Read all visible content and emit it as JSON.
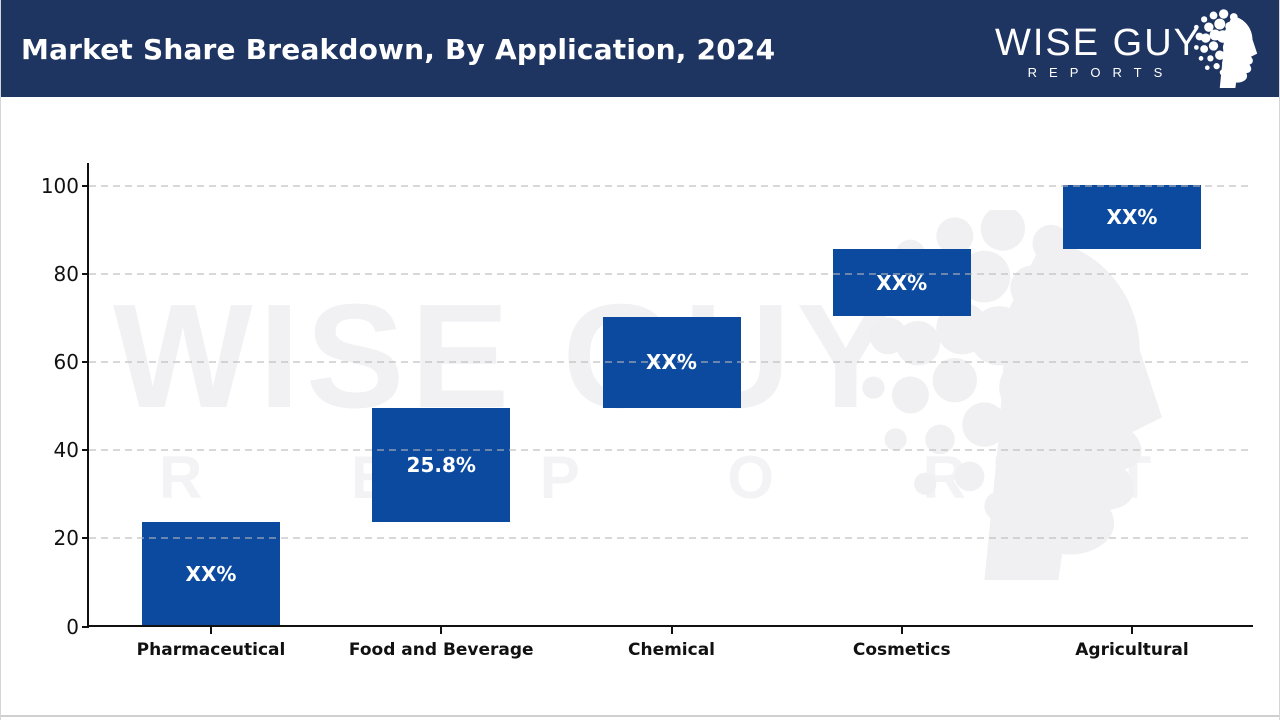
{
  "header": {
    "title": "Market Share Breakdown, By Application, 2024",
    "logo": {
      "wordmark": "WISE GUY",
      "sub": "REPORTS"
    }
  },
  "watermark": {
    "wordmark": "WISE GUY",
    "sub": "R E P O R T S"
  },
  "colors": {
    "header_bg": "#1e3461",
    "bar": "#0c4a9f",
    "grid": "#d9d9d9",
    "axis": "#111111",
    "bar_label": "#ffffff",
    "watermark": "#f1f1f3"
  },
  "chart_data": {
    "type": "bar",
    "subtype": "waterfall-floating-bars",
    "title": "Market Share Breakdown, By Application, 2024",
    "categories": [
      "Pharmaceutical",
      "Food and Beverage",
      "Chemical",
      "Cosmetics",
      "Agricultural"
    ],
    "segments": [
      {
        "category": "Pharmaceutical",
        "start": 0,
        "end": 23.8,
        "label": "XX%"
      },
      {
        "category": "Food and Beverage",
        "start": 23.8,
        "end": 49.6,
        "label": "25.8%"
      },
      {
        "category": "Chemical",
        "start": 49.7,
        "end": 70.3,
        "label": "XX%"
      },
      {
        "category": "Cosmetics",
        "start": 70.5,
        "end": 85.6,
        "label": "XX%"
      },
      {
        "category": "Agricultural",
        "start": 85.6,
        "end": 100.2,
        "label": "XX%"
      }
    ],
    "y_ticks": [
      0,
      20,
      40,
      60,
      80,
      100
    ],
    "ylim": [
      0,
      105
    ],
    "xlabel": "",
    "ylabel": "",
    "grid": "dashed-horizontal-on",
    "legend": "none"
  }
}
